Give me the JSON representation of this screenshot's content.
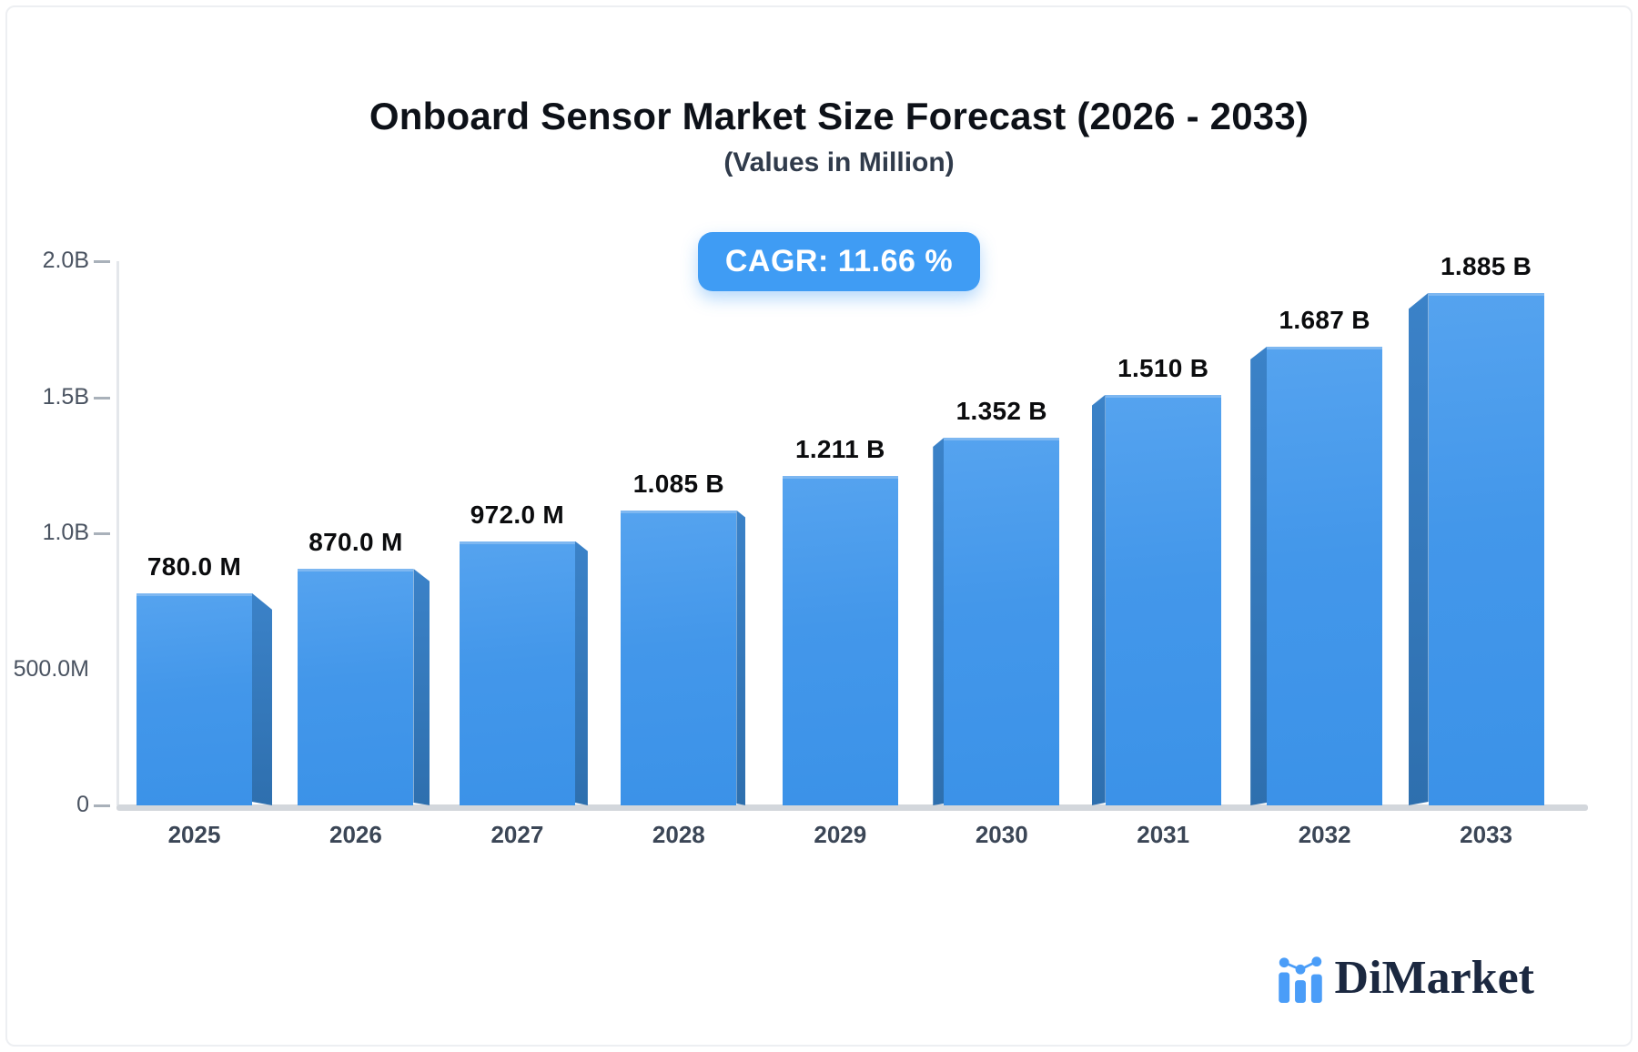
{
  "header": {
    "title": "Onboard Sensor Market Size Forecast (2026 - 2033)",
    "subtitle": "(Values in Million)",
    "cagr_label": "CAGR: 11.66 %"
  },
  "chart_data": {
    "type": "bar",
    "title": "Onboard Sensor Market Size Forecast (2026 - 2033)",
    "subtitle": "(Values in Million)",
    "cagr_percent": 11.66,
    "categories": [
      "2025",
      "2026",
      "2027",
      "2028",
      "2029",
      "2030",
      "2031",
      "2032",
      "2033"
    ],
    "values_millions": [
      780,
      870,
      972,
      1085,
      1211,
      1352,
      1510,
      1687,
      1885
    ],
    "bar_labels": [
      "780.0 M",
      "870.0 M",
      "972.0 M",
      "1.085 B",
      "1.211 B",
      "1.352 B",
      "1.510 B",
      "1.687 B",
      "1.885 B"
    ],
    "y_ticks": [
      {
        "label": "2.0B",
        "value": 2000,
        "tick": true
      },
      {
        "label": "1.5B",
        "value": 1500,
        "tick": true
      },
      {
        "label": "1.0B",
        "value": 1000,
        "tick": true
      },
      {
        "label": "500.0M",
        "value": 500,
        "tick": false
      },
      {
        "label": "0",
        "value": 0,
        "tick": true
      }
    ],
    "ylim": [
      0,
      2000
    ],
    "grid": false,
    "legend": "none",
    "bar_color": "#4397ea",
    "bar_side_color": "#2e6fae",
    "badge_color": "#3f9cf4"
  },
  "branding": {
    "logo_text": "DiMarket",
    "logo_icon": "bar-chart-logo-icon",
    "logo_color": "#4a9df8"
  }
}
